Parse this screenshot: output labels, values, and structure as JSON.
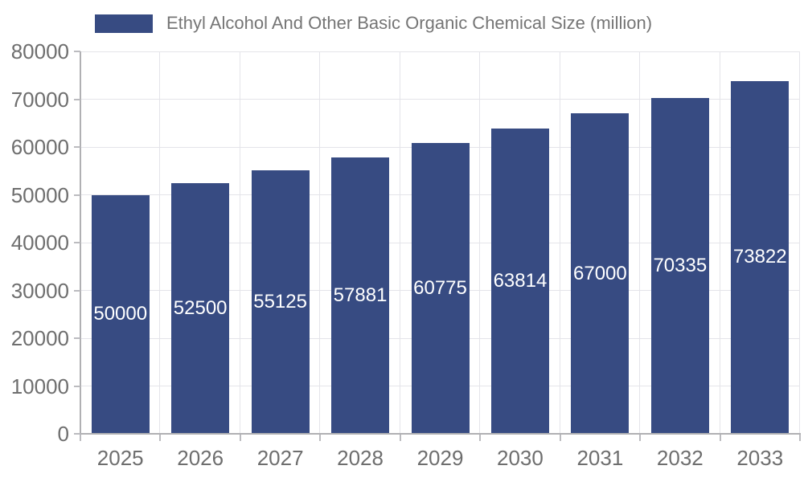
{
  "chart_data": {
    "type": "bar",
    "title": "",
    "xlabel": "",
    "ylabel": "",
    "categories": [
      "2025",
      "2026",
      "2027",
      "2028",
      "2029",
      "2030",
      "2031",
      "2032",
      "2033"
    ],
    "series": [
      {
        "name": "Ethyl Alcohol And Other Basic Organic Chemical Size (million)",
        "color": "#374B82",
        "values": [
          50000,
          52500,
          55125,
          57881,
          60775,
          63814,
          67000,
          70335,
          73822
        ]
      }
    ],
    "bar_value_labels": [
      "50000",
      "52500",
      "55125",
      "57881",
      "60775",
      "63814",
      "67000",
      "70335",
      "73822"
    ],
    "ylim": [
      0,
      80000
    ],
    "yticks": [
      0,
      10000,
      20000,
      30000,
      40000,
      50000,
      60000,
      70000,
      80000
    ],
    "ytick_labels": [
      "0",
      "10000",
      "20000",
      "30000",
      "40000",
      "50000",
      "60000",
      "70000",
      "80000"
    ],
    "grid": true,
    "legend_position": "top-left",
    "colors": {
      "bar_fill": "#374B82",
      "value_label": "#ffffff",
      "grid_line": "#e4e4e9",
      "axis_line": "#b0b0b3",
      "tick_mark": "#bbbbbf",
      "tick_label": "#6e6e6e",
      "legend_text": "#757575",
      "background": "#ffffff"
    }
  }
}
